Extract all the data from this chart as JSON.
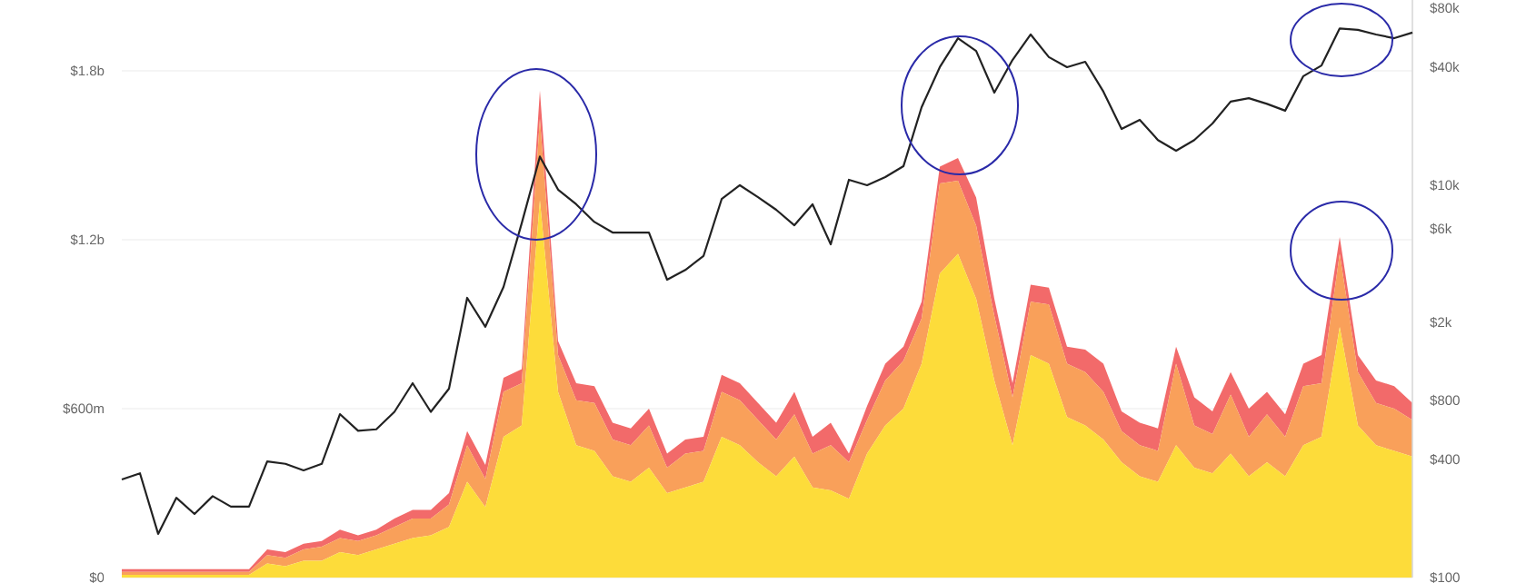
{
  "chart_data": {
    "type": "area",
    "stacked": true,
    "log": "y2",
    "grid": "y",
    "categories": [
      null,
      null,
      null,
      null,
      null,
      null,
      null,
      null,
      null,
      null,
      null,
      null,
      null,
      null,
      null,
      null,
      null,
      null,
      null,
      null,
      null,
      null,
      null,
      null,
      null,
      null,
      null,
      null,
      null,
      null,
      null,
      null,
      null,
      null,
      null,
      null,
      null,
      null,
      null,
      null,
      null,
      null,
      null,
      null,
      null,
      null,
      null,
      null,
      null,
      null,
      null,
      null,
      null,
      null,
      null,
      null,
      null,
      null,
      null,
      null,
      null,
      null,
      null,
      null,
      null,
      null,
      null,
      null,
      null,
      null,
      null,
      null
    ],
    "ylim": [
      0,
      1800000000
    ],
    "yticks": [
      {
        "value": 0,
        "label": "$0"
      },
      {
        "value": 600000000,
        "label": "$600m"
      },
      {
        "value": 1200000000,
        "label": "$1.2b"
      },
      {
        "value": 1800000000,
        "label": "$1.8b"
      }
    ],
    "y2lim": [
      100,
      88000
    ],
    "y2ticks": [
      {
        "value": 100,
        "label": "$100"
      },
      {
        "value": 400,
        "label": "$400"
      },
      {
        "value": 800,
        "label": "$800"
      },
      {
        "value": 2000,
        "label": "$2k"
      },
      {
        "value": 6000,
        "label": "$6k"
      },
      {
        "value": 10000,
        "label": "$10k"
      },
      {
        "value": 40000,
        "label": "$40k"
      },
      {
        "value": 80000,
        "label": "$80k"
      }
    ],
    "series": [
      {
        "color": "#fddc3a",
        "values": [
          10000000.0,
          10000000.0,
          10000000.0,
          10000000.0,
          10000000.0,
          10000000.0,
          10000000.0,
          10000000.0,
          50000000.0,
          40000000.0,
          60000000.0,
          60000000.0,
          90000000.0,
          80000000.0,
          100000000.0,
          120000000.0,
          140000000.0,
          150000000.0,
          180000000.0,
          340000000.0,
          250000000.0,
          500000000.0,
          540000000.0,
          1340000000.0,
          660000000.0,
          470000000.0,
          450000000.0,
          360000000.0,
          340000000.0,
          390000000.0,
          300000000.0,
          320000000.0,
          340000000.0,
          500000000.0,
          470000000.0,
          410000000.0,
          360000000.0,
          430000000.0,
          320000000.0,
          310000000.0,
          280000000.0,
          440000000.0,
          540000000.0,
          600000000.0,
          760000000.0,
          1080000000.0,
          1150000000.0,
          990000000.0,
          700000000.0,
          470000000.0,
          790000000.0,
          760000000.0,
          570000000.0,
          540000000.0,
          490000000.0,
          410000000.0,
          360000000.0,
          340000000.0,
          470000000.0,
          390000000.0,
          370000000.0,
          440000000.0,
          360000000.0,
          410000000.0,
          360000000.0,
          470000000.0,
          500000000.0,
          890000000.0,
          540000000.0,
          470000000.0,
          450000000.0,
          430000000.0
        ]
      },
      {
        "color": "#f9a05a",
        "values": [
          10000000.0,
          10000000.0,
          10000000.0,
          10000000.0,
          10000000.0,
          10000000.0,
          10000000.0,
          10000000.0,
          30000000.0,
          30000000.0,
          40000000.0,
          50000000.0,
          50000000.0,
          50000000.0,
          50000000.0,
          60000000.0,
          70000000.0,
          60000000.0,
          80000000.0,
          130000000.0,
          100000000.0,
          160000000.0,
          150000000.0,
          290000000.0,
          130000000.0,
          160000000.0,
          170000000.0,
          130000000.0,
          130000000.0,
          150000000.0,
          90000000.0,
          120000000.0,
          110000000.0,
          160000000.0,
          160000000.0,
          150000000.0,
          130000000.0,
          150000000.0,
          120000000.0,
          160000000.0,
          130000000.0,
          120000000.0,
          160000000.0,
          170000000.0,
          160000000.0,
          320000000.0,
          260000000.0,
          260000000.0,
          230000000.0,
          170000000.0,
          190000000.0,
          210000000.0,
          190000000.0,
          190000000.0,
          170000000.0,
          110000000.0,
          110000000.0,
          110000000.0,
          290000000.0,
          150000000.0,
          140000000.0,
          210000000.0,
          140000000.0,
          170000000.0,
          140000000.0,
          210000000.0,
          190000000.0,
          260000000.0,
          190000000.0,
          150000000.0,
          150000000.0,
          130000000.0
        ]
      },
      {
        "color": "#f26a6a",
        "values": [
          10000000.0,
          10000000.0,
          10000000.0,
          10000000.0,
          10000000.0,
          10000000.0,
          10000000.0,
          10000000.0,
          20000000.0,
          20000000.0,
          20000000.0,
          20000000.0,
          30000000.0,
          20000000.0,
          20000000.0,
          30000000.0,
          30000000.0,
          30000000.0,
          40000000.0,
          50000000.0,
          50000000.0,
          50000000.0,
          50000000.0,
          100000000.0,
          50000000.0,
          60000000.0,
          60000000.0,
          60000000.0,
          60000000.0,
          60000000.0,
          50000000.0,
          50000000.0,
          50000000.0,
          60000000.0,
          60000000.0,
          60000000.0,
          60000000.0,
          80000000.0,
          60000000.0,
          80000000.0,
          30000000.0,
          50000000.0,
          60000000.0,
          50000000.0,
          60000000.0,
          60000000.0,
          80000000.0,
          100000000.0,
          60000000.0,
          50000000.0,
          60000000.0,
          60000000.0,
          60000000.0,
          80000000.0,
          100000000.0,
          70000000.0,
          80000000.0,
          80000000.0,
          60000000.0,
          100000000.0,
          80000000.0,
          80000000.0,
          100000000.0,
          80000000.0,
          80000000.0,
          80000000.0,
          100000000.0,
          60000000.0,
          60000000.0,
          80000000.0,
          80000000.0,
          60000000.0
        ]
      },
      {
        "type": "line",
        "axis": "y2",
        "color": "#222222",
        "values": [
          316,
          340,
          167,
          255,
          211,
          260,
          230,
          230,
          391,
          380,
          352,
          380,
          681,
          560,
          570,
          700,
          979,
          700,
          918,
          2667,
          1900,
          3030,
          6400,
          14000,
          9500,
          8000,
          6500,
          5740,
          5740,
          5740,
          3300,
          3700,
          4355,
          8500,
          10000,
          8700,
          7500,
          6250,
          8000,
          5000,
          10660,
          10000,
          11000,
          12500,
          25000,
          40000,
          56200,
          48400,
          29650,
          43500,
          58700,
          45000,
          40000,
          42600,
          30000,
          19360,
          21550,
          17000,
          15000,
          17000,
          20650,
          26700,
          27800,
          26000,
          24000,
          36000,
          40800,
          63000,
          62000,
          58700,
          56200,
          60000
        ]
      }
    ]
  }
}
